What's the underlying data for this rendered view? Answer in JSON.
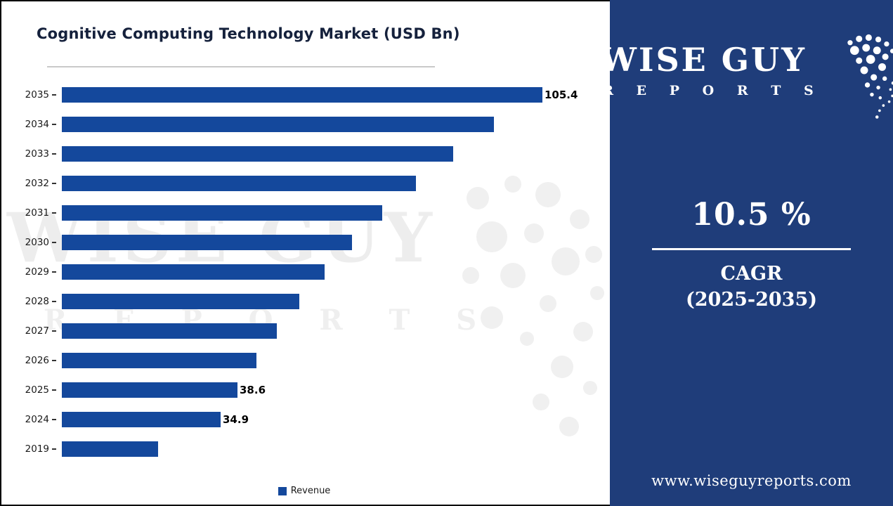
{
  "chart": {
    "title": "Cognitive Computing Technology Market (USD Bn)",
    "legend_label": "Revenue",
    "bar_color": "#14489c",
    "watermark_line1": "WISE GUY",
    "watermark_line2": "R E P O R T S"
  },
  "chart_data": {
    "type": "bar",
    "orientation": "horizontal",
    "title": "Cognitive Computing Technology Market (USD Bn)",
    "xlabel": "",
    "ylabel": "",
    "categories": [
      "2035",
      "2034",
      "2033",
      "2032",
      "2031",
      "2030",
      "2029",
      "2028",
      "2027",
      "2026",
      "2025",
      "2024",
      "2019"
    ],
    "series": [
      {
        "name": "Revenue",
        "values": [
          105.4,
          94.8,
          85.8,
          77.7,
          70.3,
          63.6,
          57.6,
          52.1,
          47.1,
          42.7,
          38.6,
          34.9,
          21.1
        ]
      }
    ],
    "data_labels": [
      {
        "category": "2035",
        "label": "105.4"
      },
      {
        "category": "2025",
        "label": "38.6"
      },
      {
        "category": "2024",
        "label": "34.9"
      }
    ],
    "xlim": [
      0,
      112
    ],
    "grid": false,
    "legend": [
      "Revenue"
    ],
    "legend_position": "bottom-center",
    "bar_color": "#14489c"
  },
  "sidebar": {
    "background": "#1f3d7a",
    "logo_line1": "WISE GUY",
    "logo_line2": "R E P O R T S",
    "cagr_value": "10.5 %",
    "cagr_label": "CAGR",
    "cagr_range": "(2025-2035)",
    "website": "www.wiseguyreports.com"
  }
}
